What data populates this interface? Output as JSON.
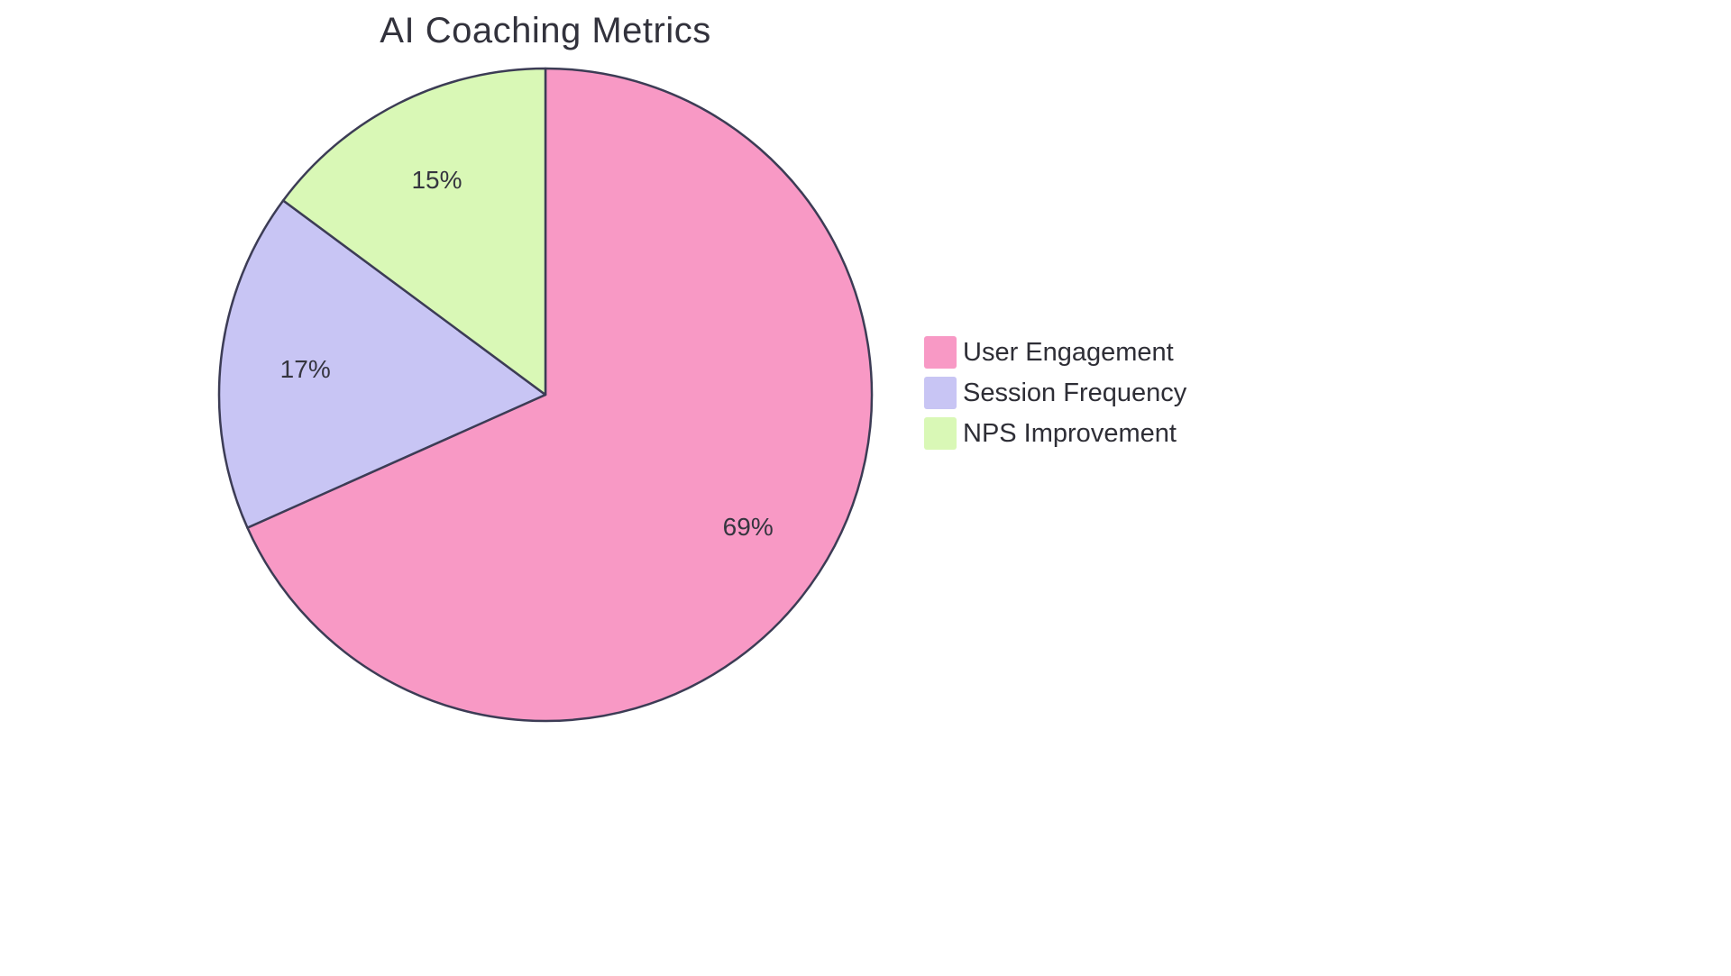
{
  "chart_data": {
    "type": "pie",
    "title": "AI Coaching Metrics",
    "series": [
      {
        "label": "User Engagement",
        "value": 69,
        "color": "#F899C5",
        "data_label": "69%"
      },
      {
        "label": "Session Frequency",
        "value": 17,
        "color": "#C8C5F4",
        "data_label": "17%"
      },
      {
        "label": "NPS Improvement",
        "value": 15,
        "color": "#D9F8B6",
        "data_label": "15%"
      }
    ],
    "value_format": "percent",
    "start_angle_deg": 0,
    "direction": "clockwise",
    "legend_position": "right",
    "stroke_color": "#3C3C55",
    "label_color": "#35353f",
    "background": "#FFFFFF"
  }
}
